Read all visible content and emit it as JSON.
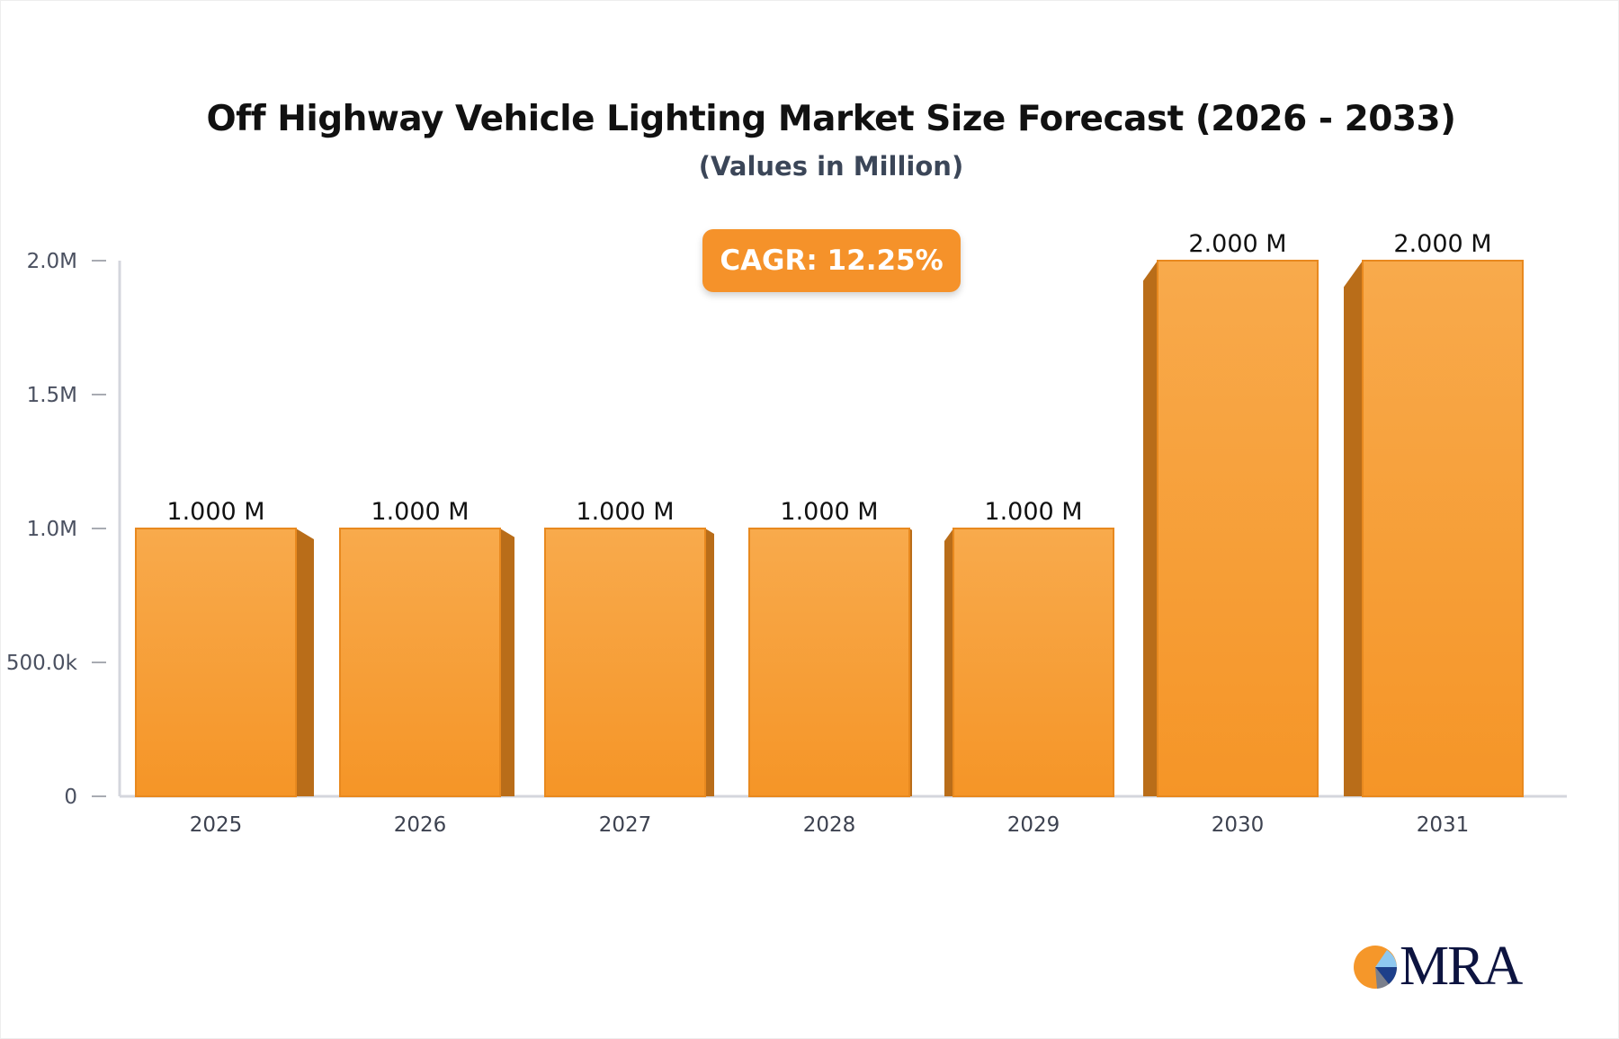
{
  "chart_data": {
    "type": "bar",
    "title": "Off Highway Vehicle Lighting Market Size Forecast (2026 - 2033)",
    "subtitle": "(Values in Million)",
    "categories": [
      "2025",
      "2026",
      "2027",
      "2028",
      "2029",
      "2030",
      "2031"
    ],
    "values": [
      1.0,
      1.0,
      1.0,
      1.0,
      1.0,
      2.0,
      2.0
    ],
    "data_labels": [
      "1.000 M",
      "1.000 M",
      "1.000 M",
      "1.000 M",
      "1.000 M",
      "2.000 M",
      "2.000 M"
    ],
    "y_ticks": [
      {
        "value": 0,
        "label": "0"
      },
      {
        "value": 0.5,
        "label": "500.0k"
      },
      {
        "value": 1.0,
        "label": "1.0M"
      },
      {
        "value": 1.5,
        "label": "1.5M"
      },
      {
        "value": 2.0,
        "label": "2.0M"
      }
    ],
    "ylim": [
      0,
      2.0
    ],
    "xlabel": "",
    "ylabel": "",
    "grid": false,
    "annotation": "CAGR: 12.25%",
    "colors": {
      "bar": "#f7a13f",
      "bar_side": "#b96d19",
      "badge": "#f5922a"
    }
  },
  "logo": {
    "text": "MRA"
  }
}
